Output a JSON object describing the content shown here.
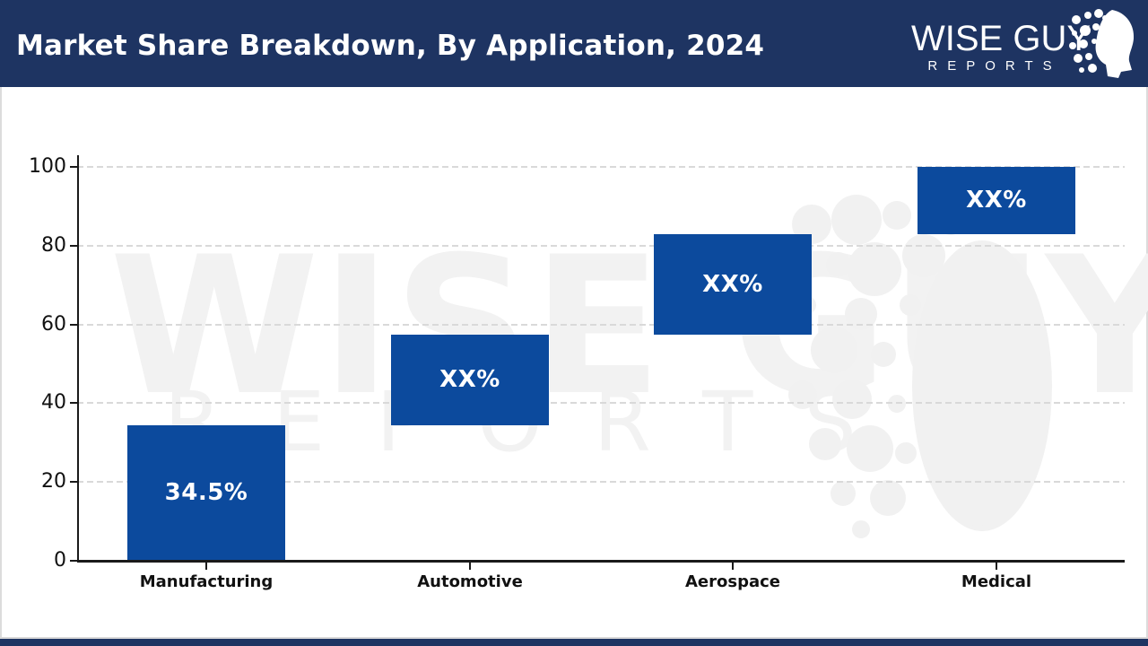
{
  "header": {
    "title": "Market Share Breakdown, By Application, 2024",
    "logo": {
      "name": "WISE GUY",
      "sub": "REPORTS"
    }
  },
  "watermark": {
    "line1": "WISE GUY",
    "line2": "R E P O R T S"
  },
  "chart_data": {
    "type": "bar",
    "subtype": "waterfall",
    "title": "Market Share Breakdown, By Application, 2024",
    "xlabel": "",
    "ylabel": "",
    "categories": [
      "Manufacturing",
      "Automotive",
      "Aerospace",
      "Medical"
    ],
    "series": [
      {
        "name": "Market share (%)",
        "segments": [
          {
            "category": "Manufacturing",
            "start": 0,
            "end": 34.5,
            "label": "34.5%"
          },
          {
            "category": "Automotive",
            "start": 34.5,
            "end": 57.5,
            "label": "XX%"
          },
          {
            "category": "Aerospace",
            "start": 57.5,
            "end": 83,
            "label": "XX%"
          },
          {
            "category": "Medical",
            "start": 83,
            "end": 100,
            "label": "XX%"
          }
        ]
      }
    ],
    "yticks": [
      0,
      20,
      40,
      60,
      80,
      100
    ],
    "ylim": [
      0,
      103
    ],
    "grid": "horizontal-dashed",
    "legend": "none",
    "colors": {
      "bar": "#0c4a9d",
      "grid": "#d9d9d9",
      "axis": "#1a1a1a",
      "header_bg": "#1e3462",
      "bar_label_text": "#ffffff",
      "watermark": "#f2f2f2"
    }
  }
}
